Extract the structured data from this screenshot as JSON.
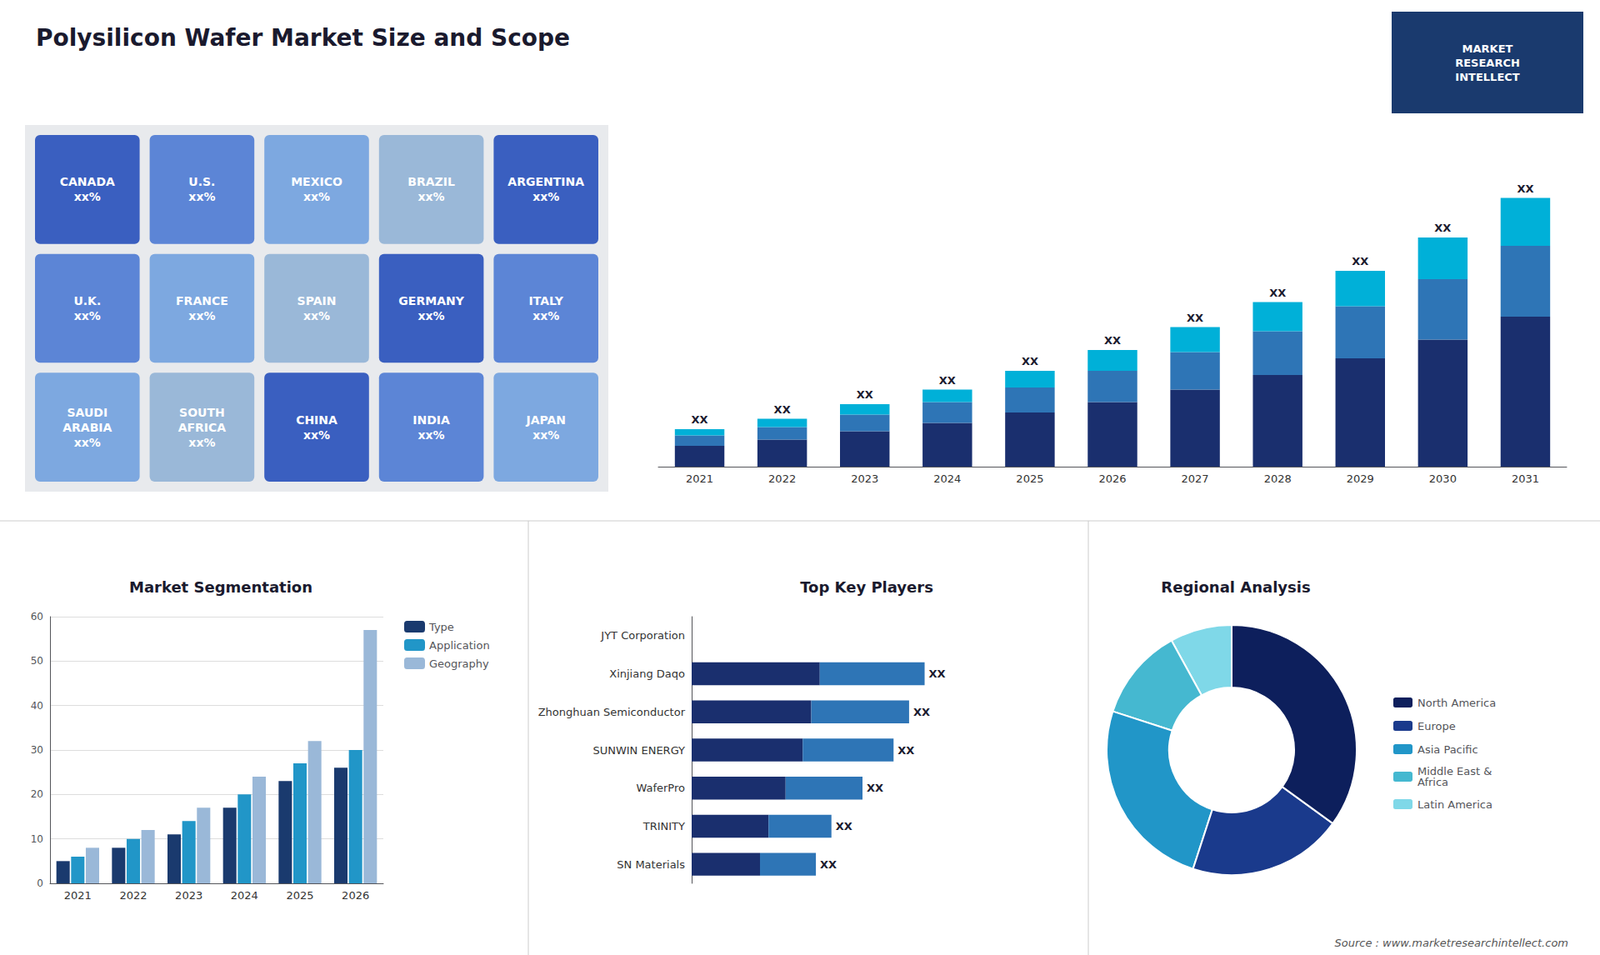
{
  "chart_data": [
    {
      "type": "text",
      "title": "Polysilicon Wafer Market Size and Scope",
      "annotations": [
        "MARKET\nRESEARCH\nINTELLECT",
        "Source : www.marketresearchintellect.com"
      ]
    },
    {
      "type": "map",
      "annotations": [
        "CANADA\nxx%",
        "U.S.\nxx%",
        "MEXICO\nxx%",
        "BRAZIL\nxx%",
        "ARGENTINA\nxx%",
        "U.K.\nxx%",
        "FRANCE\nxx%",
        "SPAIN\nxx%",
        "GERMANY\nxx%",
        "ITALY\nxx%",
        "SAUDI\nARABIA\nxx%",
        "SOUTH\nAFRICA\nxx%",
        "CHINA\nxx%",
        "INDIA\nxx%",
        "JAPAN\nxx%"
      ]
    },
    {
      "type": "bar",
      "stacked": true,
      "categories": [
        "2021",
        "2022",
        "2023",
        "2024",
        "2025",
        "2026",
        "2027",
        "2028",
        "2029",
        "2030",
        "2031"
      ],
      "series": [
        {
          "color": "#1a2f6e",
          "values": [
            1,
            1.3,
            1.7,
            2.1,
            2.6,
            3.1,
            3.7,
            4.4,
            5.2,
            6.1,
            7.2
          ]
        },
        {
          "color": "#2e75b6",
          "values": [
            0.5,
            0.6,
            0.8,
            1.0,
            1.2,
            1.5,
            1.8,
            2.1,
            2.5,
            2.9,
            3.4
          ]
        },
        {
          "color": "#00b0d8",
          "values": [
            0.3,
            0.4,
            0.5,
            0.6,
            0.8,
            1.0,
            1.2,
            1.4,
            1.7,
            2.0,
            2.3
          ]
        }
      ],
      "ylim": [
        0,
        16
      ],
      "tick_labels": "x",
      "grid": false,
      "annotations": [
        "XX",
        "XX",
        "XX",
        "XX",
        "XX",
        "XX",
        "XX",
        "XX",
        "XX",
        "XX",
        "XX"
      ]
    },
    {
      "type": "bar",
      "title": "Market Segmentation",
      "categories": [
        "2021",
        "2022",
        "2023",
        "2024",
        "2025",
        "2026"
      ],
      "series": [
        {
          "name": "Type",
          "color": "#1a3a6e",
          "values": [
            5,
            8,
            11,
            17,
            23,
            26
          ]
        },
        {
          "name": "Application",
          "color": "#2196c8",
          "values": [
            6,
            10,
            14,
            20,
            27,
            30
          ]
        },
        {
          "name": "Geography",
          "color": "#9ab8d8",
          "values": [
            8,
            12,
            17,
            24,
            32,
            57
          ]
        }
      ],
      "ylim": [
        0,
        60
      ],
      "yticks": [
        0,
        10,
        20,
        30,
        40,
        50,
        60
      ],
      "grid": true,
      "legend": "right"
    },
    {
      "type": "bar",
      "orientation": "horizontal",
      "stacked": true,
      "title": "Top Key Players",
      "categories": [
        "JYT Corporation",
        "Xinjiang Daqo",
        "Zhonghuan Semiconductor",
        "SUNWIN ENERGY",
        "WaferPro",
        "TRINITY",
        "SN Materials"
      ],
      "series": [
        {
          "color": "#1a2f6e",
          "values": [
            0,
            41.25,
            38.5,
            35.75,
            30.25,
            24.75,
            22
          ]
        },
        {
          "color": "#2e75b6",
          "values": [
            0,
            33.75,
            31.5,
            29.25,
            24.75,
            20.25,
            18
          ]
        }
      ],
      "xlim": [
        0,
        110
      ],
      "tick_labels": "y",
      "grid": false,
      "annotations": [
        null,
        "XX",
        "XX",
        "XX",
        "XX",
        "XX",
        "XX"
      ]
    },
    {
      "type": "pie",
      "title": "Regional Analysis",
      "categories": [
        "Latin America",
        "Middle East &\nAfrica",
        "Asia Pacific",
        "Europe",
        "North America"
      ],
      "values": [
        8,
        12,
        25,
        20,
        35
      ],
      "colors": [
        "#7fd8e8",
        "#45b8d0",
        "#2196c8",
        "#1a3a8c",
        "#0d1f5c"
      ],
      "legend": "right"
    }
  ]
}
